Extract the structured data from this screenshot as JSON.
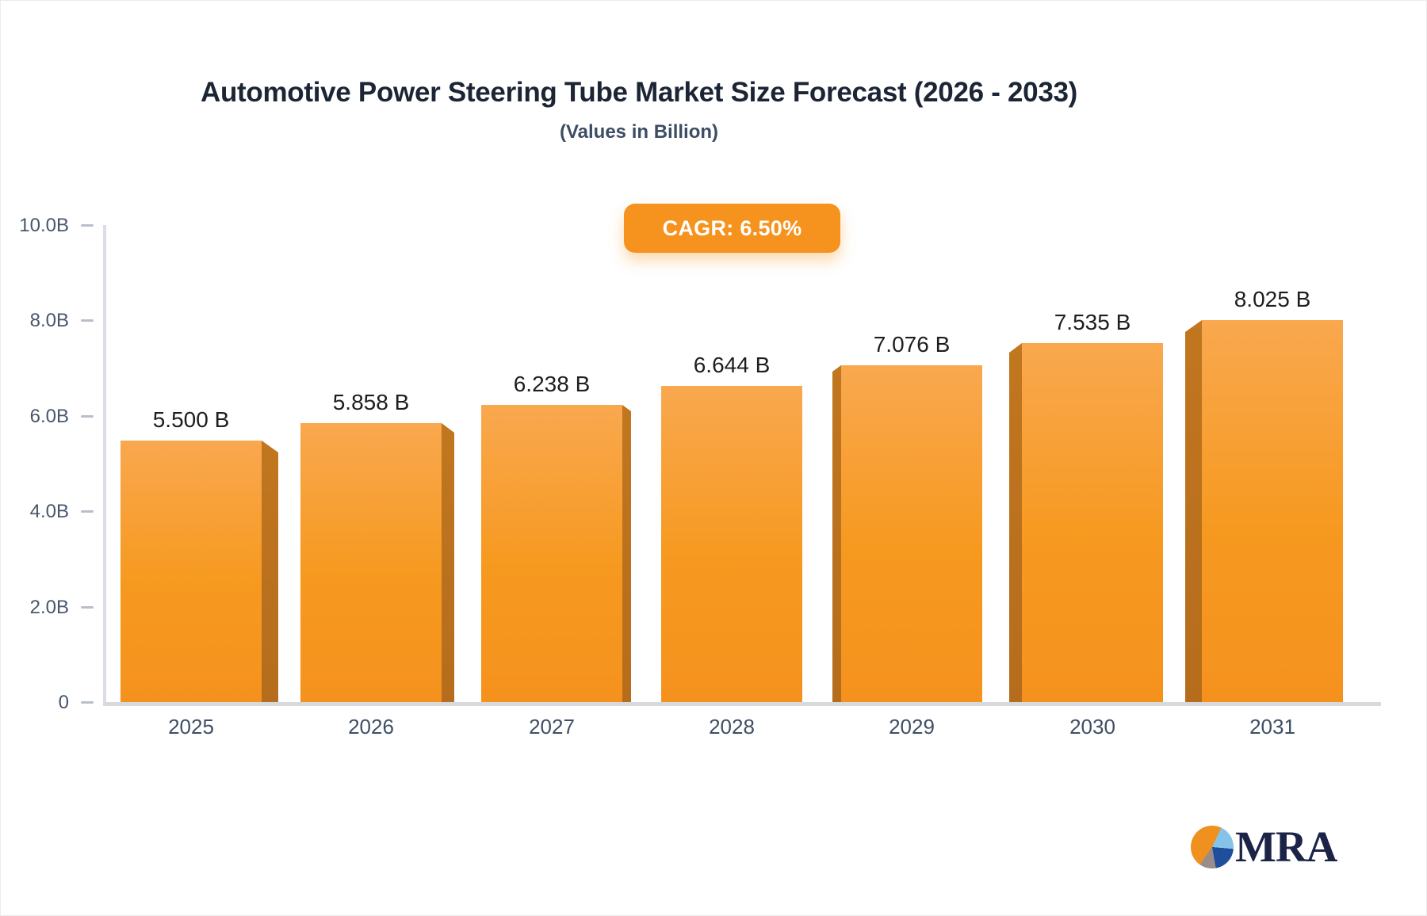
{
  "header": {
    "title": "Automotive Power Steering Tube Market Size Forecast (2026 - 2033)",
    "subtitle": "(Values in Billion)"
  },
  "badge": {
    "label": "CAGR: 6.50%"
  },
  "chart_data": {
    "type": "bar",
    "categories": [
      "2025",
      "2026",
      "2027",
      "2028",
      "2029",
      "2030",
      "2031"
    ],
    "values": [
      5.5,
      5.858,
      6.238,
      6.644,
      7.076,
      7.535,
      8.025
    ],
    "value_labels": [
      "5.500 B",
      "5.858 B",
      "6.238 B",
      "6.644 B",
      "7.076 B",
      "7.535 B",
      "8.025 B"
    ],
    "title": "Automotive Power Steering Tube Market Size Forecast (2026 - 2033)",
    "subtitle": "(Values in Billion)",
    "xlabel": "",
    "ylabel": "",
    "ylim": [
      0,
      10
    ],
    "yticks": [
      {
        "value": 10,
        "label": "10.0B"
      },
      {
        "value": 8,
        "label": "8.0B"
      },
      {
        "value": 6,
        "label": "6.0B"
      },
      {
        "value": 4,
        "label": "4.0B"
      },
      {
        "value": 2,
        "label": "2.0B"
      },
      {
        "value": 0,
        "label": "0"
      }
    ],
    "grid": false,
    "legend": "none",
    "bar_style": "pseudo-3d, side bevels face toward chart center",
    "colors": {
      "bar_face_top": "#f9a84f",
      "bar_face_bottom": "#f5921e",
      "bar_side": "#b9701e",
      "axis_line": "#d9dce1",
      "tick": "#b9bfc8",
      "value_label": "#1d1e20",
      "axis_label": "#47576c",
      "category_label": "#3e4e64",
      "badge_bg": "#f6921e",
      "badge_text": "#ffffff",
      "title_text": "#1c2534",
      "subtitle_text": "#3d4d63"
    }
  },
  "logo": {
    "text": "MRA",
    "pie_colors": [
      "#f0911f",
      "#86c3e8",
      "#1f4e9c",
      "#9a8c88"
    ]
  }
}
